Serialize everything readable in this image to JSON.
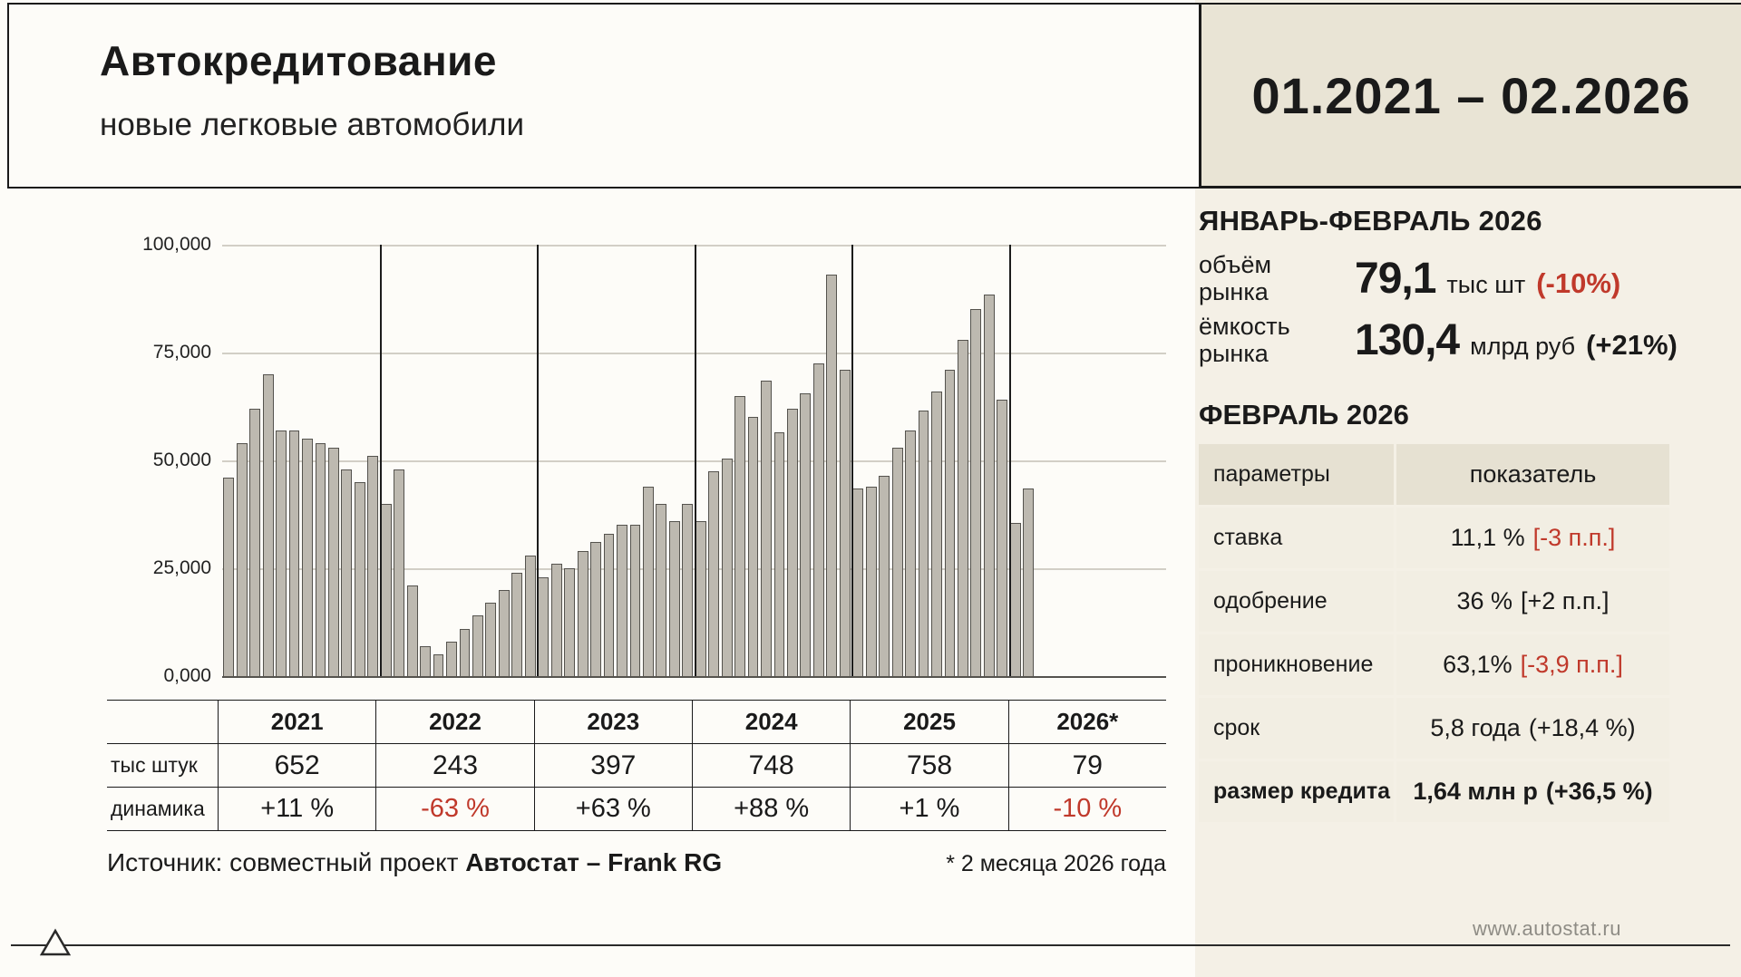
{
  "header": {
    "title": "Автокредитование",
    "subtitle": "новые легковые автомобили",
    "period": "01.2021 – 02.2026"
  },
  "chart_data": {
    "type": "bar",
    "title": "",
    "xlabel": "",
    "ylabel": "",
    "ylim": [
      0,
      100000
    ],
    "ymax_thousands": 100,
    "total_month_slots": 72,
    "grid": true,
    "ytick_labels": [
      "100,000",
      "75,000",
      "50,000",
      "25,000",
      "0,000"
    ],
    "unit": "штук в месяц",
    "years": [
      {
        "year": "2021",
        "monthly_thousands": [
          46,
          54,
          62,
          70,
          57,
          57,
          55,
          54,
          53,
          48,
          45,
          51
        ]
      },
      {
        "year": "2022",
        "monthly_thousands": [
          40,
          48,
          21,
          7,
          5,
          8,
          11,
          14,
          17,
          20,
          24,
          28
        ]
      },
      {
        "year": "2023",
        "monthly_thousands": [
          23,
          26,
          25,
          29,
          31,
          33,
          35,
          35,
          44,
          40,
          36,
          40
        ]
      },
      {
        "year": "2024",
        "monthly_thousands": [
          36,
          47.5,
          50.5,
          65,
          60,
          68.5,
          56.5,
          62,
          65.5,
          72.5,
          93,
          71
        ]
      },
      {
        "year": "2025",
        "monthly_thousands": [
          43.5,
          44,
          46.5,
          53,
          57,
          61.5,
          66,
          71,
          78,
          85,
          88.5,
          64
        ]
      },
      {
        "year": "2026",
        "monthly_thousands": [
          35.5,
          43.5
        ]
      }
    ]
  },
  "summary_table": {
    "row_labels": [
      "тыс штук",
      "динамика"
    ],
    "columns": [
      {
        "year": "2021",
        "volume": "652",
        "dynamics": "+11 %",
        "negative": false
      },
      {
        "year": "2022",
        "volume": "243",
        "dynamics": "-63 %",
        "negative": true
      },
      {
        "year": "2023",
        "volume": "397",
        "dynamics": "+63 %",
        "negative": false
      },
      {
        "year": "2024",
        "volume": "748",
        "dynamics": "+88 %",
        "negative": false
      },
      {
        "year": "2025",
        "volume": "758",
        "dynamics": "+1 %",
        "negative": false
      },
      {
        "year": "2026*",
        "volume": "79",
        "dynamics": "-10 %",
        "negative": true
      }
    ]
  },
  "source": {
    "prefix": "Источник: совместный проект ",
    "bold_part": "Автостат – Frank RG",
    "footnote": "* 2 месяца 2026 года"
  },
  "stats_panel": {
    "period_title": "ЯНВАРЬ-ФЕВРАЛЬ 2026",
    "metrics": [
      {
        "label": "объём\nрынка",
        "value": "79,1",
        "unit": "тыс шт",
        "change": "(-10%)",
        "change_negative": true
      },
      {
        "label": "ёмкость\nрынка",
        "value": "130,4",
        "unit": "млрд руб",
        "change": "(+21%)",
        "change_negative": false
      }
    ],
    "month_title": "ФЕВРАЛЬ 2026",
    "table": {
      "header": [
        "параметры",
        "показатель"
      ],
      "rows": [
        {
          "param": "ставка",
          "value": "11,1 %",
          "bracket": "[-3 п.п.]",
          "bracket_negative": true,
          "bold": false
        },
        {
          "param": "одобрение",
          "value": "36 %",
          "bracket": "[+2 п.п.]",
          "bracket_negative": false,
          "bold": false
        },
        {
          "param": "проникновение",
          "value": "63,1%",
          "bracket": "[-3,9 п.п.]",
          "bracket_negative": true,
          "bold": false
        },
        {
          "param": "срок",
          "value": "5,8 года",
          "bracket": "(+18,4 %)",
          "bracket_negative": false,
          "bold": false
        },
        {
          "param": "размер кредита",
          "value": "1,64 млн р",
          "bracket": "(+36,5 %)",
          "bracket_negative": false,
          "bold": true
        }
      ]
    }
  },
  "footer": {
    "website": "www.autostat.ru"
  },
  "colors": {
    "accent_red": "#c0392b",
    "bar_fill": "#bdb9b0",
    "bar_border": "#55534e",
    "panel_beige": "#e9e4d5",
    "table_header_beige": "#e6e1d2",
    "table_row_beige": "#f2eee3",
    "background_cream": "#f4f0e6"
  }
}
